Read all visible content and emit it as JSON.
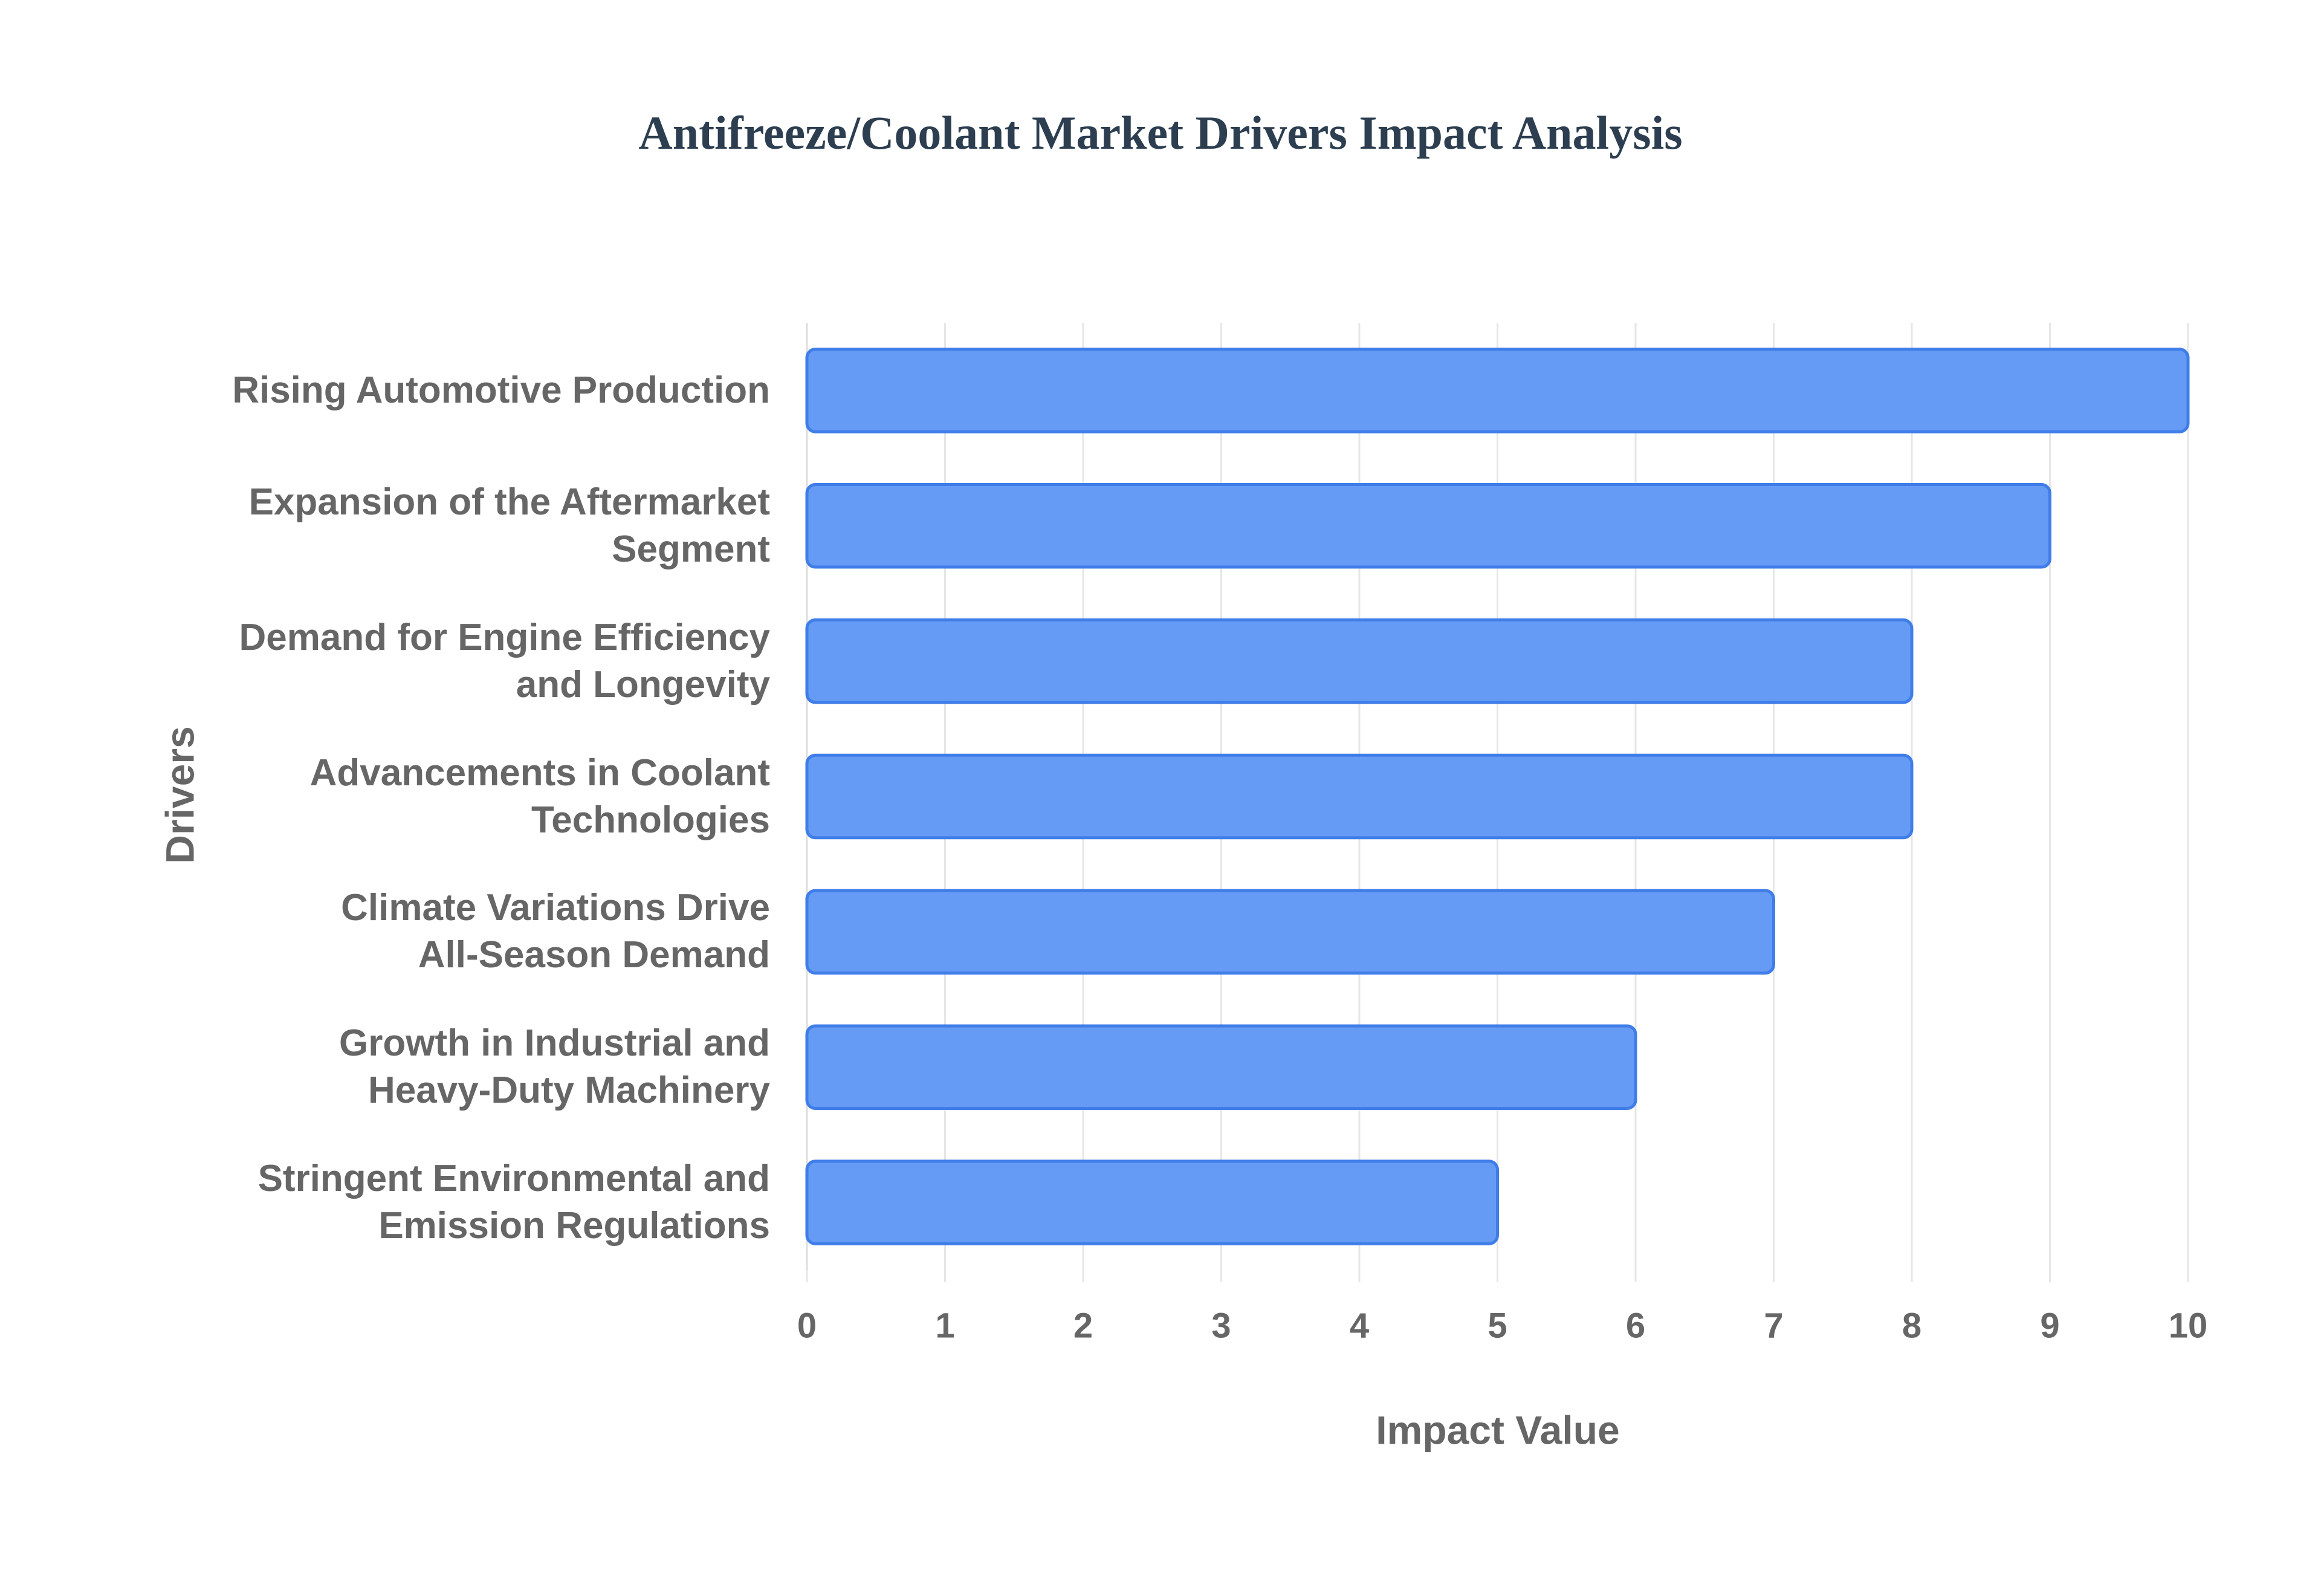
{
  "chart_data": {
    "type": "bar",
    "orientation": "horizontal",
    "title": "Antifreeze/Coolant Market Drivers Impact Analysis",
    "x_label": "Impact Value",
    "y_label": "Drivers",
    "categories": [
      "Rising Automotive Production",
      "Expansion of the Aftermarket\nSegment",
      "Demand for Engine Efficiency\nand Longevity",
      "Advancements in Coolant\nTechnologies",
      "Climate Variations Drive\nAll-Season Demand",
      "Growth in Industrial and\nHeavy-Duty Machinery",
      "Stringent Environmental and\nEmission Regulations"
    ],
    "values": [
      10,
      9,
      8,
      8,
      7,
      6,
      5
    ],
    "color": "#6399f5",
    "edge_color": "#3f7de8",
    "xlim": [
      0,
      10
    ],
    "xticks": [
      0,
      1,
      2,
      3,
      4,
      5,
      6,
      7,
      8,
      9,
      10
    ],
    "grid": true
  }
}
